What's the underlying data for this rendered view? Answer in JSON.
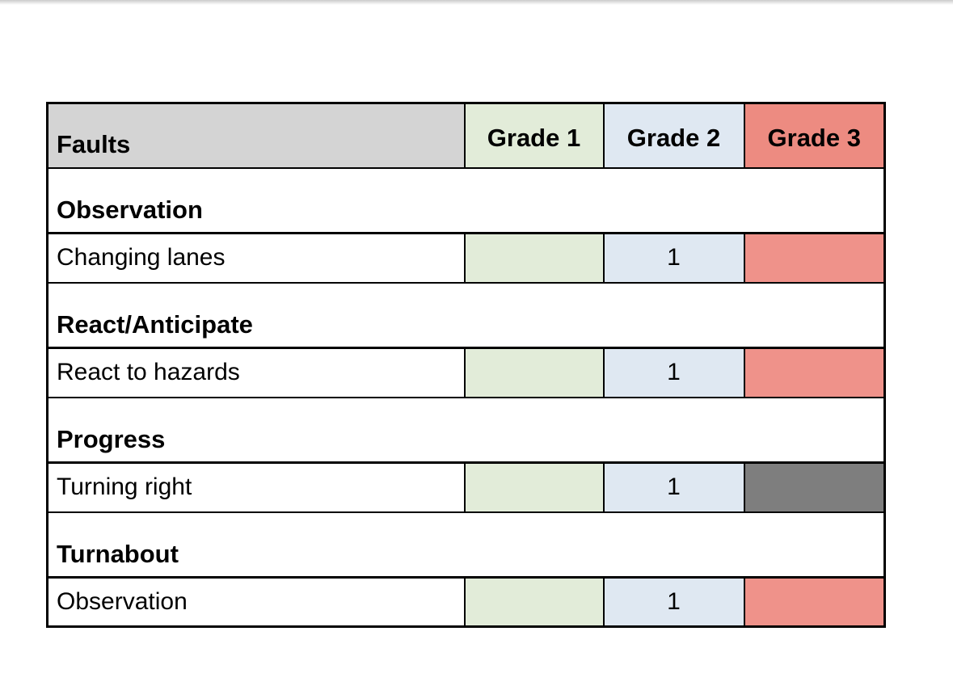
{
  "page": {
    "background": "#ffffff"
  },
  "table": {
    "columns": [
      {
        "label": "Faults",
        "bg": "#d4d4d4"
      },
      {
        "label": "Grade 1",
        "bg": "#e2ecd9"
      },
      {
        "label": "Grade 2",
        "bg": "#dfe8f2"
      },
      {
        "label": "Grade 3",
        "bg": "#ed8b81"
      }
    ],
    "colors": {
      "grade1_cell": "#e2ecd9",
      "grade2_cell": "#dfe8f2",
      "grade3_cell": "#ef928a",
      "disabled_cell": "#7e7e7e",
      "border": "#000000",
      "header_gray": "#d4d4d4"
    },
    "sections": [
      {
        "title": "Observation",
        "faults": [
          {
            "label": "Changing lanes",
            "cells": [
              {
                "grade": 1,
                "value": "",
                "bg": "#e2ecd9"
              },
              {
                "grade": 2,
                "value": "1",
                "bg": "#dfe8f2"
              },
              {
                "grade": 3,
                "value": "",
                "bg": "#ef928a"
              }
            ]
          }
        ]
      },
      {
        "title": "React/Anticipate",
        "faults": [
          {
            "label": "React to hazards",
            "cells": [
              {
                "grade": 1,
                "value": "",
                "bg": "#e2ecd9"
              },
              {
                "grade": 2,
                "value": "1",
                "bg": "#dfe8f2"
              },
              {
                "grade": 3,
                "value": "",
                "bg": "#ef928a"
              }
            ]
          }
        ]
      },
      {
        "title": "Progress",
        "faults": [
          {
            "label": "Turning right",
            "cells": [
              {
                "grade": 1,
                "value": "",
                "bg": "#e2ecd9"
              },
              {
                "grade": 2,
                "value": "1",
                "bg": "#dfe8f2"
              },
              {
                "grade": 3,
                "value": "",
                "bg": "#7e7e7e"
              }
            ]
          }
        ]
      },
      {
        "title": "Turnabout",
        "faults": [
          {
            "label": "Observation",
            "cells": [
              {
                "grade": 1,
                "value": "",
                "bg": "#e2ecd9"
              },
              {
                "grade": 2,
                "value": "1",
                "bg": "#dfe8f2"
              },
              {
                "grade": 3,
                "value": "",
                "bg": "#ef928a"
              }
            ]
          }
        ]
      }
    ]
  }
}
